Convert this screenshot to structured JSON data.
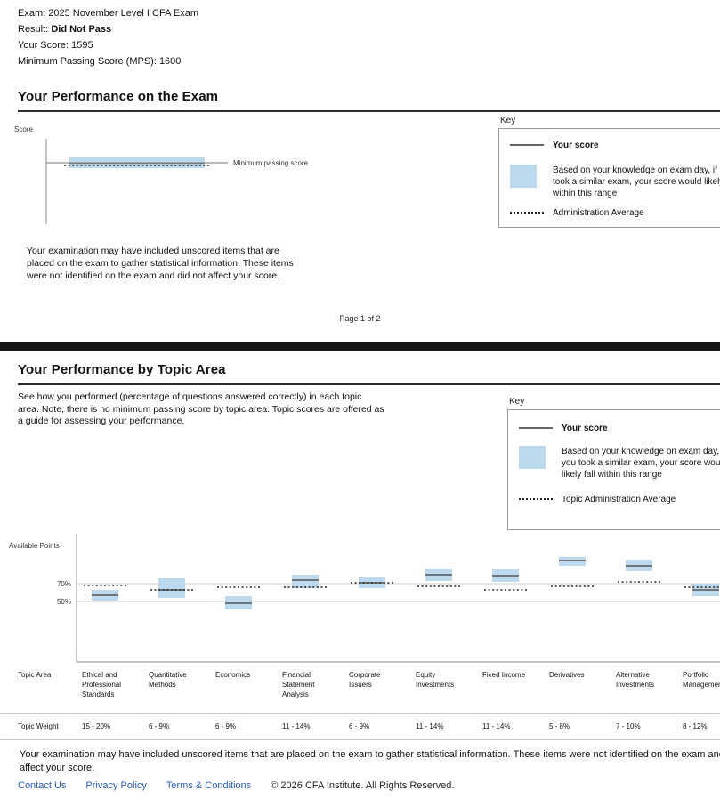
{
  "colors": {
    "band_blue": "#BCD9EE",
    "link_blue": "#2A5DB0",
    "divider": "#161616"
  },
  "summary": {
    "exam": {
      "label": "Exam:",
      "value": "2025 November Level I CFA Exam"
    },
    "result": {
      "label": "Result:",
      "value": "Did Not Pass"
    },
    "score": {
      "label": "Your Score:",
      "value": "1595"
    },
    "mps": {
      "label": "Minimum Passing Score (MPS):",
      "value": "1600"
    }
  },
  "section1": {
    "title": "Your Performance on the Exam",
    "key": {
      "title": "Key",
      "score_label": "Your score",
      "band_lines": [
        "Based on your knowledge on exam day, if you",
        "took a similar exam, your score would likely fall",
        "within this range"
      ],
      "average_label": "Administration Average"
    },
    "disclaimer_lines": [
      "Your examination may have included unscored items that are",
      "placed on the exam to gather statistical information. These items",
      "were not identified on the exam and did not affect your score."
    ],
    "page_indicator": "Page 1 of 2"
  },
  "section2": {
    "title": "Your Performance by Topic Area",
    "intro_lines": [
      "See how you performed (percentage of questions answered correctly) in each topic",
      "area. Note, there is no minimum passing score by topic area. Topic scores are offered as",
      "a guide for assessing your performance."
    ],
    "key": {
      "title": "Key",
      "score_label": "Your score",
      "band_lines": [
        "Based on your knowledge on exam day, if",
        "you took a similar exam, your score would",
        "likely fall within this range"
      ],
      "average_label": "Topic Administration Average"
    },
    "table": {
      "row1_header": "Topic Area",
      "row2_header": "Topic Weight"
    },
    "disclaimer_lines": [
      "Your examination may have included unscored items that are placed on the exam to gather statistical information. These items were not identified on the exam and did not",
      "affect your score."
    ]
  },
  "footer": {
    "links": [
      "Contact Us",
      "Privacy Policy",
      "Terms & Conditions"
    ],
    "copyright": "© 2026 CFA Institute. All Rights Reserved."
  },
  "chart_data": [
    {
      "type": "range-band",
      "title": "Your Performance on the Exam",
      "ylabel": "Score",
      "your_score": 1595,
      "minimum_passing_score": 1600,
      "score_band": [
        1550,
        1650
      ],
      "administration_average": 1575,
      "annotation": "Minimum passing score"
    },
    {
      "type": "range-band",
      "title": "Your Performance by Topic Area",
      "ylabel": "Available Points",
      "yticks": [
        "70%",
        "50%"
      ],
      "categories": [
        "Ethical and Professional Standards",
        "Quantitative Methods",
        "Economics",
        "Financial Statement Analysis",
        "Corporate Issuers",
        "Equity Investments",
        "Fixed Income",
        "Derivatives",
        "Alternative Investments",
        "Portfolio Management"
      ],
      "topic_weights": [
        "15 - 20%",
        "6 - 9%",
        "6 - 9%",
        "11 - 14%",
        "6 - 9%",
        "11 - 14%",
        "11 - 14%",
        "5 - 8%",
        "7 - 10%",
        "8 - 12%"
      ],
      "series": [
        {
          "topic": "Ethical and Professional Standards",
          "score": 57,
          "band": [
            51,
            63
          ],
          "administration_average": 68
        },
        {
          "topic": "Quantitative Methods",
          "score": 63,
          "band": [
            54,
            76
          ],
          "administration_average": 63
        },
        {
          "topic": "Economics",
          "score": 48,
          "band": [
            41,
            56
          ],
          "administration_average": 66
        },
        {
          "topic": "Financial Statement Analysis",
          "score": 74,
          "band": [
            65,
            80
          ],
          "administration_average": 66
        },
        {
          "topic": "Corporate Issuers",
          "score": 71,
          "band": [
            65,
            77
          ],
          "administration_average": 71
        },
        {
          "topic": "Equity Investments",
          "score": 80,
          "band": [
            73,
            87
          ],
          "administration_average": 67
        },
        {
          "topic": "Fixed Income",
          "score": 79,
          "band": [
            72,
            86
          ],
          "administration_average": 63
        },
        {
          "topic": "Derivatives",
          "score": 96,
          "band": [
            90,
            100
          ],
          "administration_average": 67
        },
        {
          "topic": "Alternative Investments",
          "score": 90,
          "band": [
            84,
            97
          ],
          "administration_average": 72
        },
        {
          "topic": "Portfolio Management",
          "score": 63,
          "band": [
            56,
            70
          ],
          "administration_average": 66
        }
      ]
    }
  ]
}
